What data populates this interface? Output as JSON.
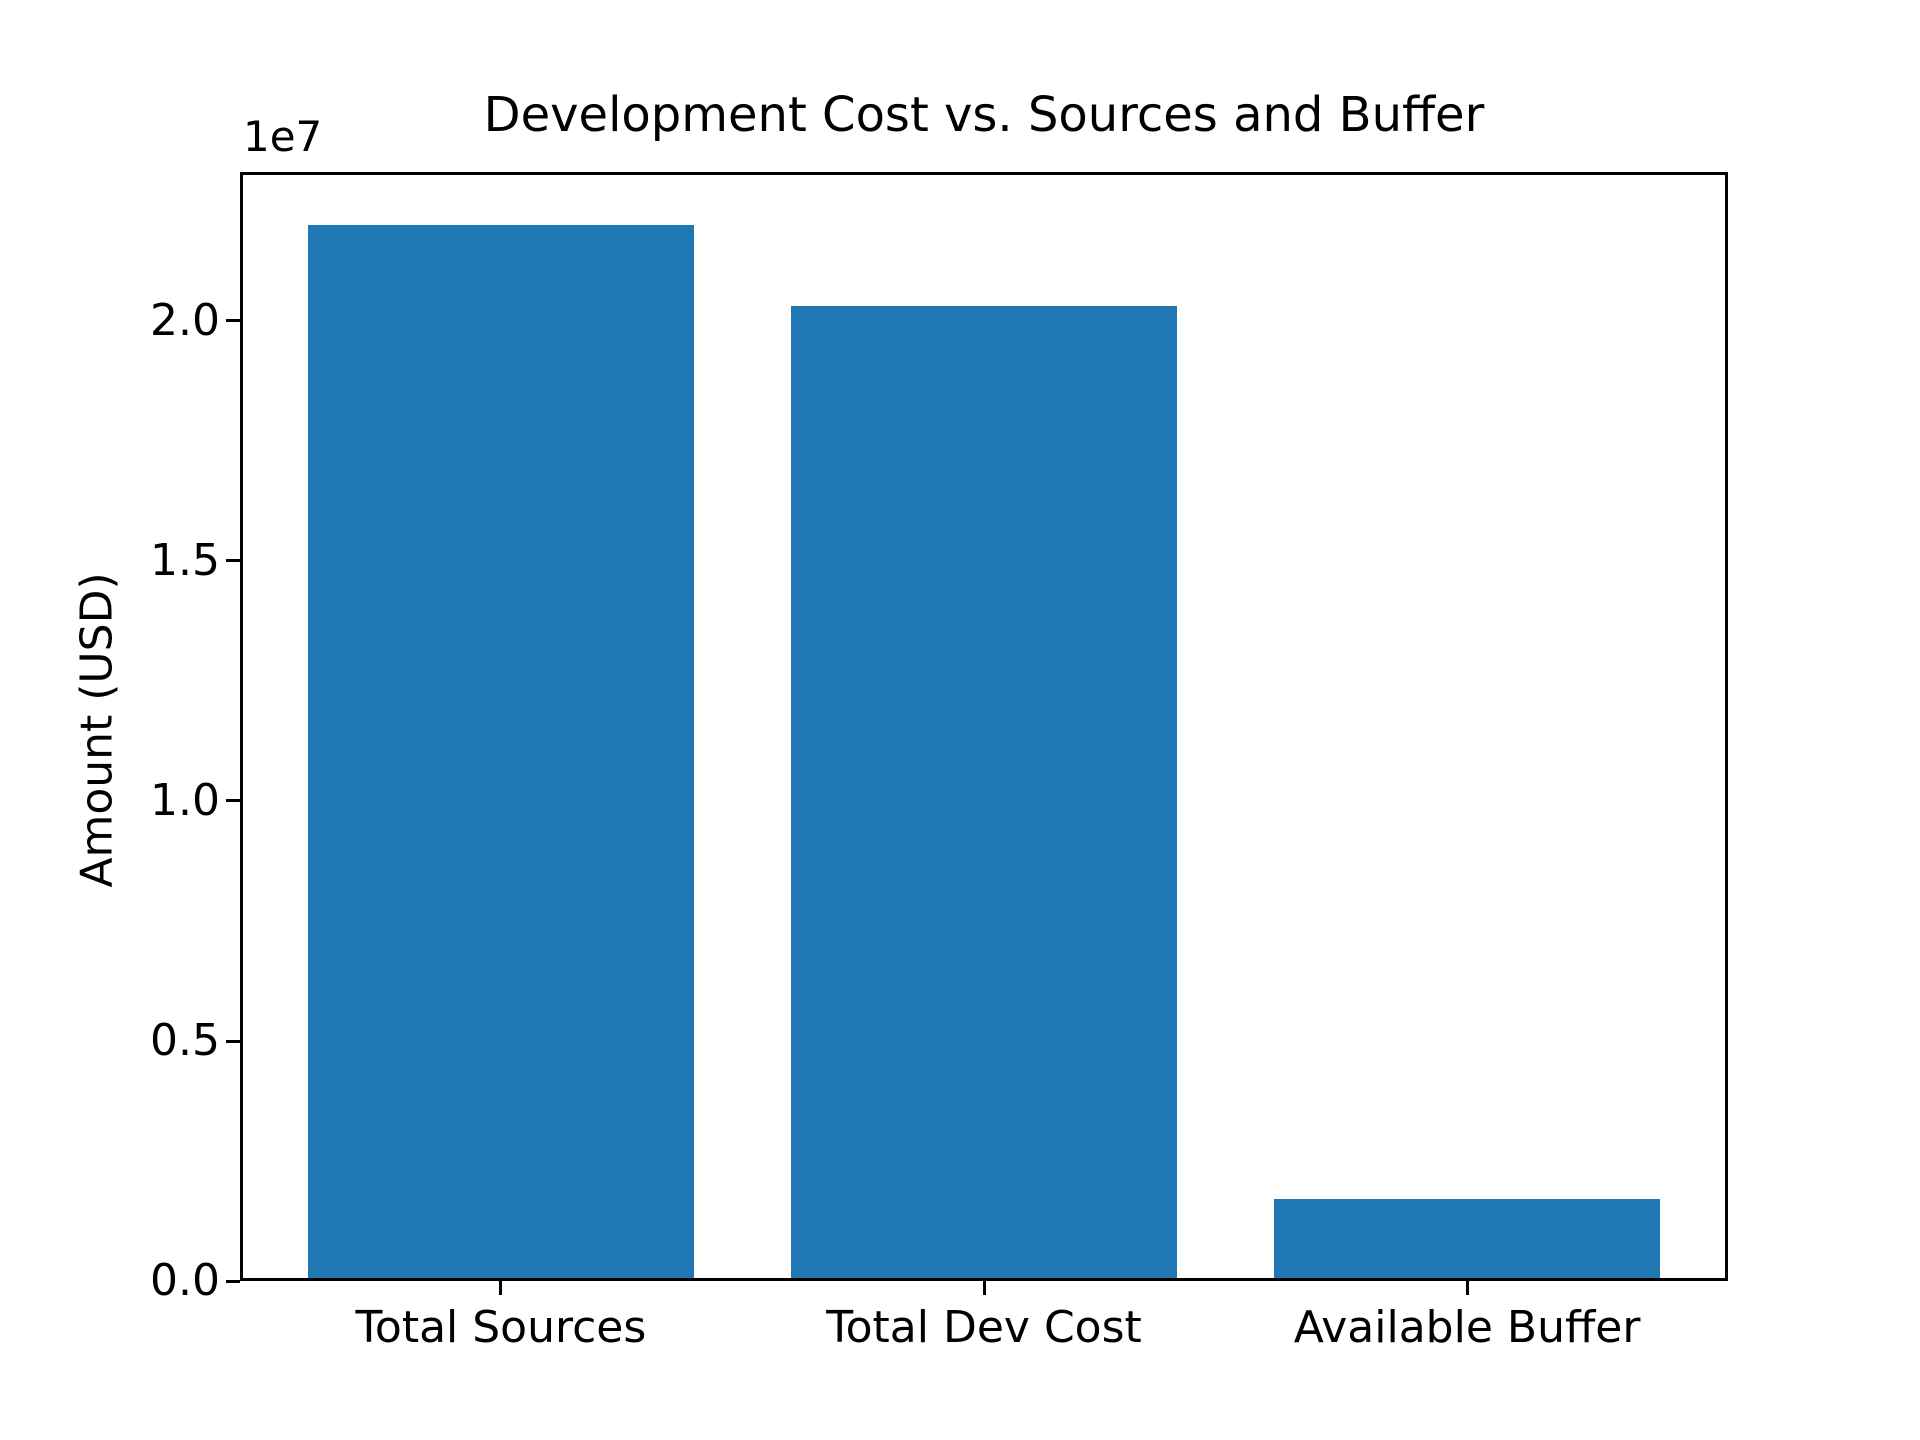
{
  "chart_data": {
    "type": "bar",
    "title": "Development Cost vs. Sources and Buffer",
    "categories": [
      "Total Sources",
      "Total Dev Cost",
      "Available Buffer"
    ],
    "values": [
      22000000,
      20300000,
      1700000
    ],
    "xlabel": "",
    "ylabel": "Amount (USD)",
    "ylim": [
      0,
      23100000
    ],
    "yticks": [
      0,
      5000000,
      10000000,
      15000000,
      20000000
    ],
    "ytick_labels": [
      "0.0",
      "0.5",
      "1.0",
      "1.5",
      "2.0"
    ],
    "offset_label": "1e7",
    "bar_color": "#1f77b4",
    "bar_width_ratio": 0.8,
    "x_margin": 0.05,
    "grid": false,
    "legend": "none",
    "background_color": "#ffffff",
    "axis_color": "#000000"
  }
}
